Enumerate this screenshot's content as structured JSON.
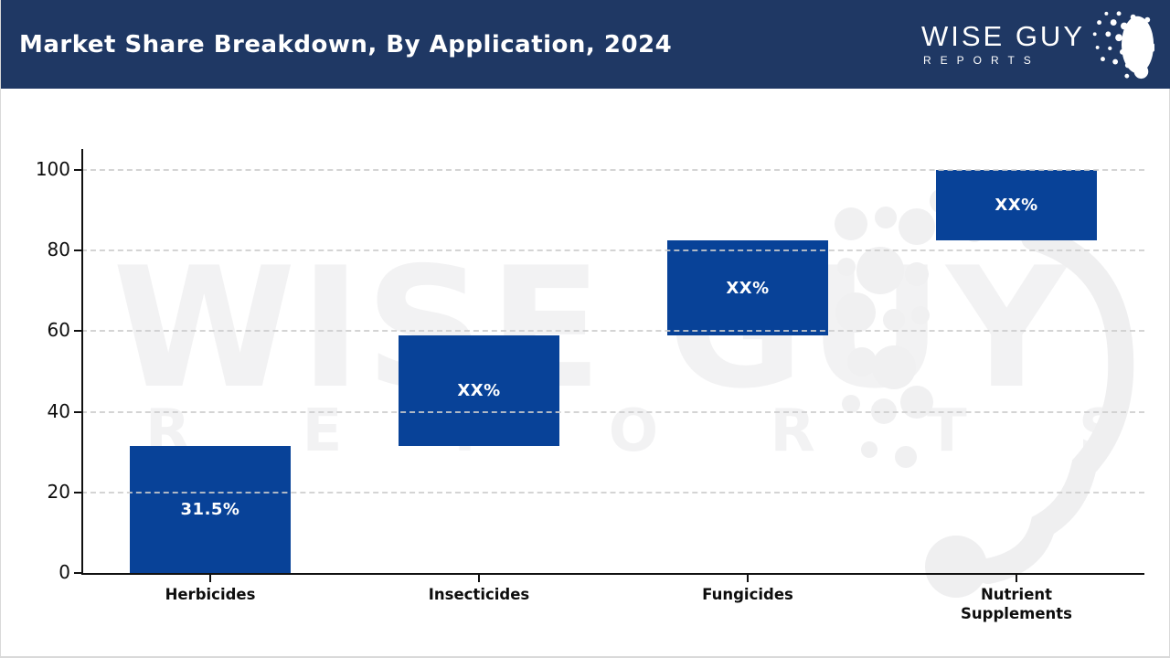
{
  "header": {
    "title": "Market Share Breakdown, By Application, 2024",
    "logo": {
      "line1": "WISE GUY",
      "line2": "REPORTS"
    }
  },
  "watermark": {
    "line1": "WISE GUY",
    "line2": "R E P O R T S"
  },
  "colors": {
    "header_bg": "#1f3864",
    "bar": "#084298",
    "grid": "#cdcdcd",
    "axis": "#111111",
    "watermark": "#f2f2f3"
  },
  "chart_data": {
    "type": "bar",
    "subtype": "waterfall",
    "title": "Market Share Breakdown, By Application, 2024",
    "xlabel": "",
    "ylabel": "",
    "ylim": [
      0,
      100
    ],
    "y_ticks": [
      0,
      20,
      40,
      60,
      80,
      100
    ],
    "grid": "horizontal-dashed, drawn over bars",
    "legend": "none",
    "categories": [
      "Herbicides",
      "Insecticides",
      "Fungicides",
      "Nutrient Supplements"
    ],
    "segments": [
      {
        "category": "Herbicides",
        "start": 0,
        "end": 31.5,
        "label": "31.5%"
      },
      {
        "category": "Insecticides",
        "start": 31.5,
        "end": 59,
        "label": "XX%"
      },
      {
        "category": "Fungicides",
        "start": 59,
        "end": 82.5,
        "label": "XX%"
      },
      {
        "category": "Nutrient Supplements",
        "start": 82.5,
        "end": 100,
        "label": "XX%"
      }
    ]
  }
}
